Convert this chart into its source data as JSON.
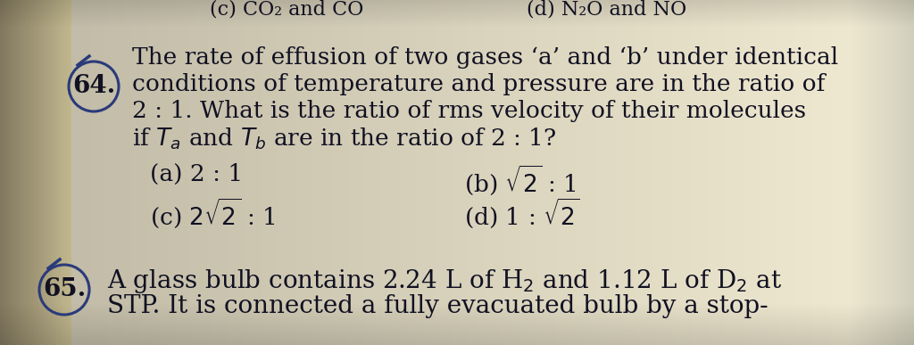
{
  "background_color": "#c8bfa0",
  "page_color": "#e8e4d8",
  "top_left_text": "(c) CO₂ and CO",
  "top_right_text": "(d) N₂O and NO",
  "q64_number": "64.",
  "circle_color": "#2a3a7a",
  "q64_line1": "The rate of effusion of two gases ‘a’ and ‘b’ under identical",
  "q64_line2": "conditions of temperature and pressure are in the ratio of",
  "q64_line3": "2 : 1. What is the ratio of rms velocity of their molecules",
  "q64_line4": "if $T_a$ and $T_b$ are in the ratio of 2 : 1?",
  "opt_a": "(a) 2 : 1",
  "opt_b_prefix": "(b) ",
  "opt_b_math": "$\\sqrt{2}$",
  "opt_b_suffix": " : 1",
  "opt_c_prefix": "(c) ",
  "opt_c_math": "$2\\sqrt{2}$",
  "opt_c_suffix": " : 1",
  "opt_d_prefix": "(d) 1 : ",
  "opt_d_math": "$\\sqrt{2}$",
  "q65_number": "65.",
  "q65_line1": "A glass bulb contains 2.24 L of H$_2$ and 1.12 L of D$_2$ at",
  "q65_line2": "STP. It is connected a fully evacuated bulb by a stop-",
  "text_color": "#111122",
  "font_size_main": 19,
  "font_size_options": 19,
  "font_size_top": 16,
  "font_size_q65": 20
}
